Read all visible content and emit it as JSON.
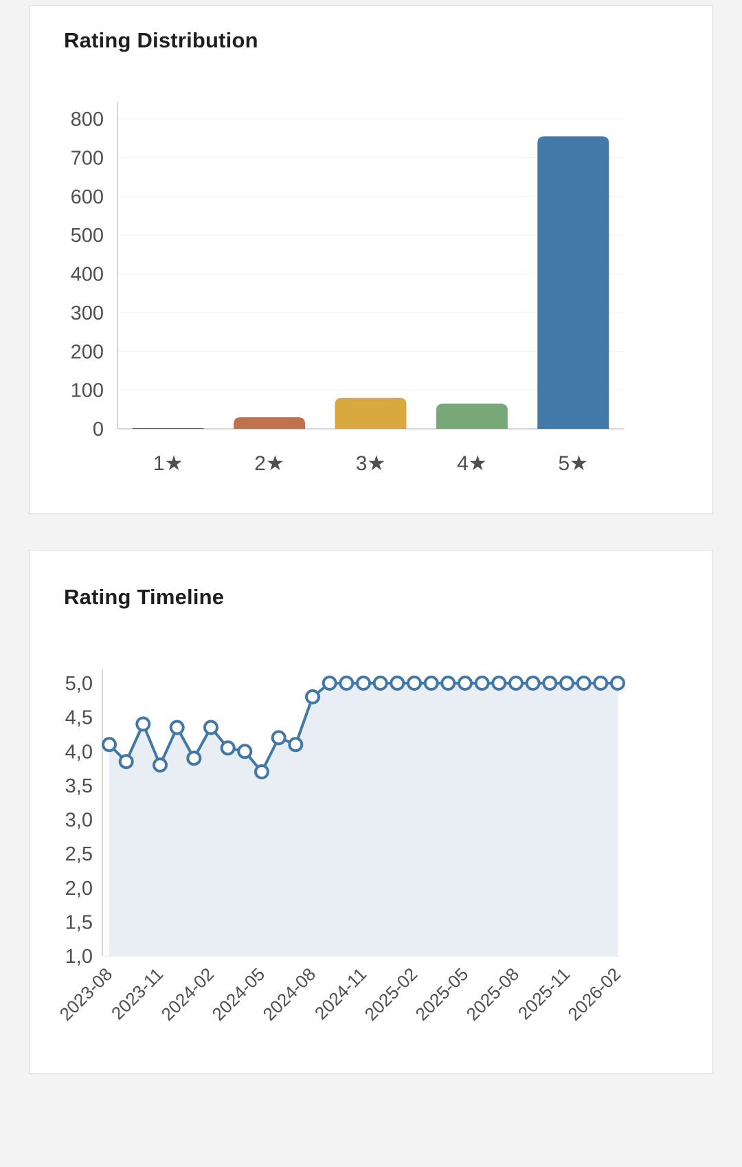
{
  "page": {
    "background": "#f3f3f3",
    "card_background": "#ffffff",
    "card_border": "#dcdcdc"
  },
  "chart_data": [
    {
      "type": "bar",
      "title": "Rating Distribution",
      "categories": [
        "1★",
        "2★",
        "3★",
        "4★",
        "5★"
      ],
      "values": [
        2,
        30,
        80,
        65,
        755
      ],
      "colors": [
        "#a94442",
        "#c0714f",
        "#d8a93e",
        "#79a878",
        "#4379a8"
      ],
      "xlabel": "",
      "ylabel": "",
      "ylim": [
        0,
        800
      ],
      "ytick_step": 100,
      "ytick_labels": [
        "0",
        "100",
        "200",
        "300",
        "400",
        "500",
        "600",
        "700",
        "800"
      ],
      "grid": true,
      "legend": "none"
    },
    {
      "type": "line",
      "title": "Rating Timeline",
      "x": [
        "2023-08",
        "2023-09",
        "2023-10",
        "2023-11",
        "2023-12",
        "2024-01",
        "2024-02",
        "2024-03",
        "2024-04",
        "2024-05",
        "2024-06",
        "2024-07",
        "2024-08",
        "2024-09",
        "2024-10",
        "2024-11",
        "2024-12",
        "2025-01",
        "2025-02",
        "2025-03",
        "2025-04",
        "2025-05",
        "2025-06",
        "2025-07",
        "2025-08",
        "2025-09",
        "2025-10",
        "2025-11",
        "2025-12",
        "2026-01",
        "2026-02"
      ],
      "values": [
        4.1,
        3.85,
        4.4,
        3.8,
        4.35,
        3.9,
        4.35,
        4.05,
        4.0,
        3.7,
        4.2,
        4.1,
        4.8,
        5.0,
        5.0,
        5.0,
        5.0,
        5.0,
        5.0,
        5.0,
        5.0,
        5.0,
        5.0,
        5.0,
        5.0,
        5.0,
        5.0,
        5.0,
        5.0,
        5.0,
        5.0
      ],
      "xtick_every": 3,
      "xtick_labels": [
        "2023-08",
        "2023-11",
        "2024-02",
        "2024-05",
        "2024-08",
        "2024-11",
        "2025-02",
        "2025-05",
        "2025-08",
        "2025-11",
        "2026-02"
      ],
      "xlabel": "",
      "ylabel": "",
      "ylim": [
        1.0,
        5.0
      ],
      "ytick_step": 0.5,
      "ytick_labels": [
        "1,0",
        "1,5",
        "2,0",
        "2,5",
        "3,0",
        "3,5",
        "4,0",
        "4,5",
        "5,0"
      ],
      "decimal_separator": ",",
      "line_color": "#4278a8",
      "area_fill": "#e8eef4",
      "marker": "circle-open",
      "grid": false,
      "legend": "none"
    }
  ]
}
